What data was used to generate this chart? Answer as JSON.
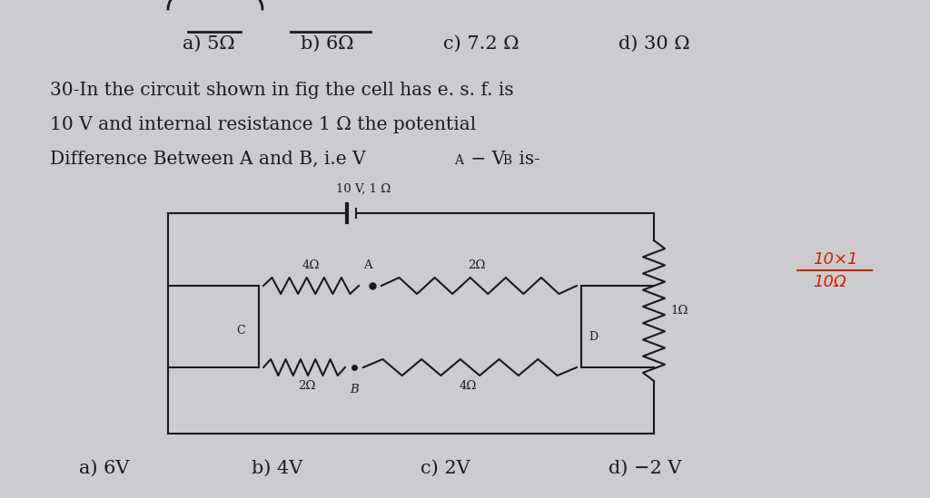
{
  "bg_color": "#ccccd0",
  "text_color": "#1a1a1a",
  "handwritten_color": "#cc2200",
  "prev_a": "a) 5Ω",
  "prev_b": "b) 6Ω",
  "prev_c": "c) 7.2 Ω",
  "prev_d": "d) 30 Ω",
  "line1": "30-In the circuit shown in fig the cell has e. s. f. is",
  "line2": "10 V and internal resistance 1 Ω the potential",
  "line3a": "Difference Between A and B, i.e V",
  "line3b": "A",
  "line3c": " − V",
  "line3d": "B",
  "line3e": " is-",
  "battery_label": "10 V, 1 Ω",
  "R1": "4Ω",
  "R2": "2Ω",
  "R3": "1Ω",
  "R4": "2Ω",
  "R5": "4Ω",
  "A": "A",
  "B": "B",
  "C": "C",
  "D": "D",
  "ans_a": "a) 6V",
  "ans_b": "b) 4V",
  "ans_c": "c) 2V",
  "ans_d": "d) −2 V",
  "hw1": "10×1",
  "hw2": "10Ω"
}
